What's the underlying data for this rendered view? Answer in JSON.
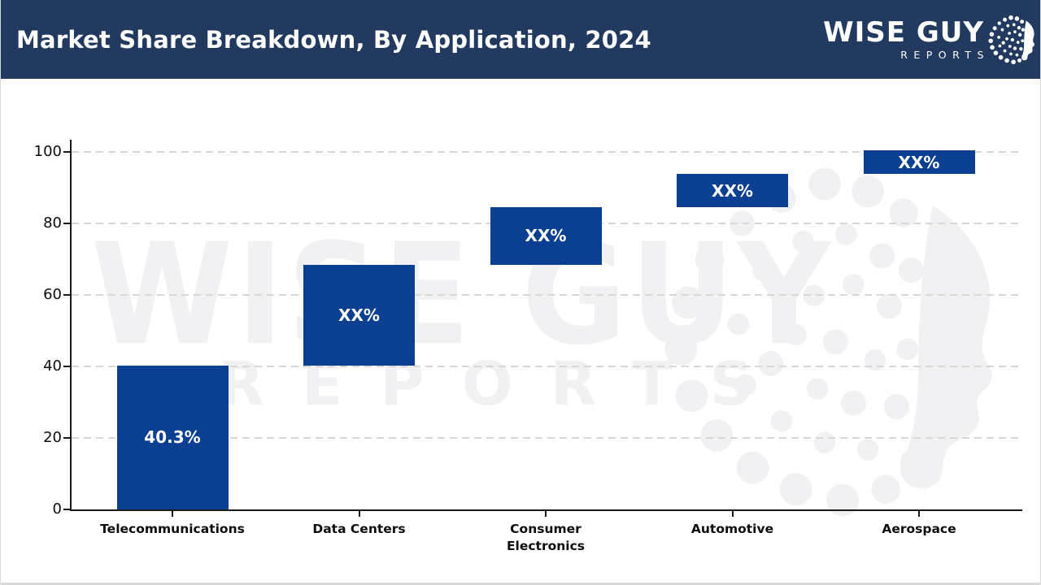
{
  "header": {
    "title": "Market Share Breakdown, By Application, 2024"
  },
  "brand": {
    "name": "WISE GUY",
    "sub": "REPORTS"
  },
  "colors": {
    "header_bg": "#233a60",
    "bar": "#0b3f92",
    "bar_label": "#ffffff",
    "axis": "#1a1a1a",
    "gridline": "#d8d8d8",
    "watermark": "#f1f1f4",
    "tick_text": "#0d0d0d"
  },
  "chart_data": {
    "type": "bar",
    "subtype": "waterfall",
    "title": "Market Share Breakdown, By Application, 2024",
    "categories": [
      "Telecommunications",
      "Data Centers",
      "Consumer\nElectronics",
      "Automotive",
      "Aerospace"
    ],
    "segments": [
      {
        "category": "Telecommunications",
        "start": 0,
        "end": 40.3,
        "label": "40.3%"
      },
      {
        "category": "Data Centers",
        "start": 40.3,
        "end": 68.5,
        "label": "XX%"
      },
      {
        "category": "Consumer\nElectronics",
        "start": 68.5,
        "end": 84.5,
        "label": "XX%"
      },
      {
        "category": "Automotive",
        "start": 84.5,
        "end": 93.8,
        "label": "XX%"
      },
      {
        "category": "Aerospace",
        "start": 93.8,
        "end": 100.5,
        "label": "XX%"
      }
    ],
    "xlabel": "",
    "ylabel": "",
    "ylim": [
      0,
      103.5
    ],
    "yticks": [
      0,
      20,
      40,
      60,
      80,
      100
    ],
    "grid": "horizontal-dashed",
    "legend": "none",
    "bar_color": "#0b3f92",
    "bar_label_color": "#ffffff"
  }
}
